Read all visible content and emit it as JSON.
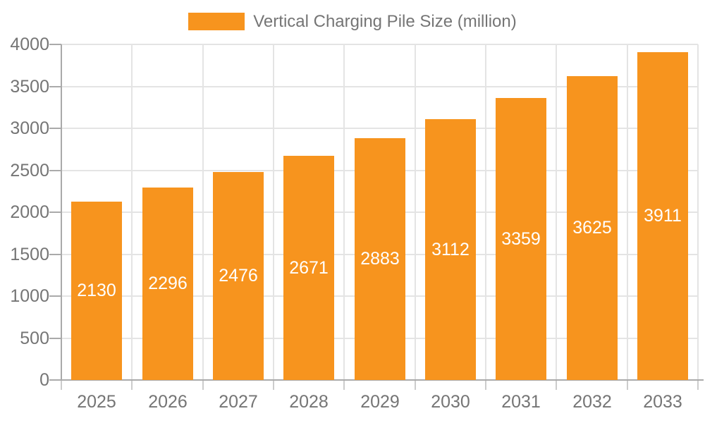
{
  "chart_data": {
    "type": "bar",
    "title": "",
    "legend": "Vertical Charging Pile Size (million)",
    "series": [
      {
        "name": "Vertical Charging Pile Size (million)",
        "values": [
          2130,
          2296,
          2476,
          2671,
          2883,
          3112,
          3359,
          3625,
          3911
        ]
      }
    ],
    "categories": [
      "2025",
      "2026",
      "2027",
      "2028",
      "2029",
      "2030",
      "2031",
      "2032",
      "2033"
    ],
    "values": [
      2130,
      2296,
      2476,
      2671,
      2883,
      3112,
      3359,
      3625,
      3911
    ],
    "value_labels": [
      "2130",
      "2296",
      "2476",
      "2671",
      "2883",
      "3112",
      "3359",
      "3625",
      "3911"
    ],
    "xlabel": "",
    "ylabel": "",
    "ylim": [
      0,
      4000
    ],
    "y_tick_step": 500,
    "y_tick_labels": [
      "0",
      "500",
      "1000",
      "1500",
      "2000",
      "2500",
      "3000",
      "3500",
      "4000"
    ],
    "grid": true,
    "legend_position": "top-center",
    "colors": {
      "bar": "#f7941e",
      "grid_line": "#e4e4e4",
      "axis_line": "#aaaaaa",
      "x_tick_line": "#cccccc",
      "axis_text": "#757575",
      "value_label_text": "#ffffff",
      "background": "#ffffff"
    }
  }
}
